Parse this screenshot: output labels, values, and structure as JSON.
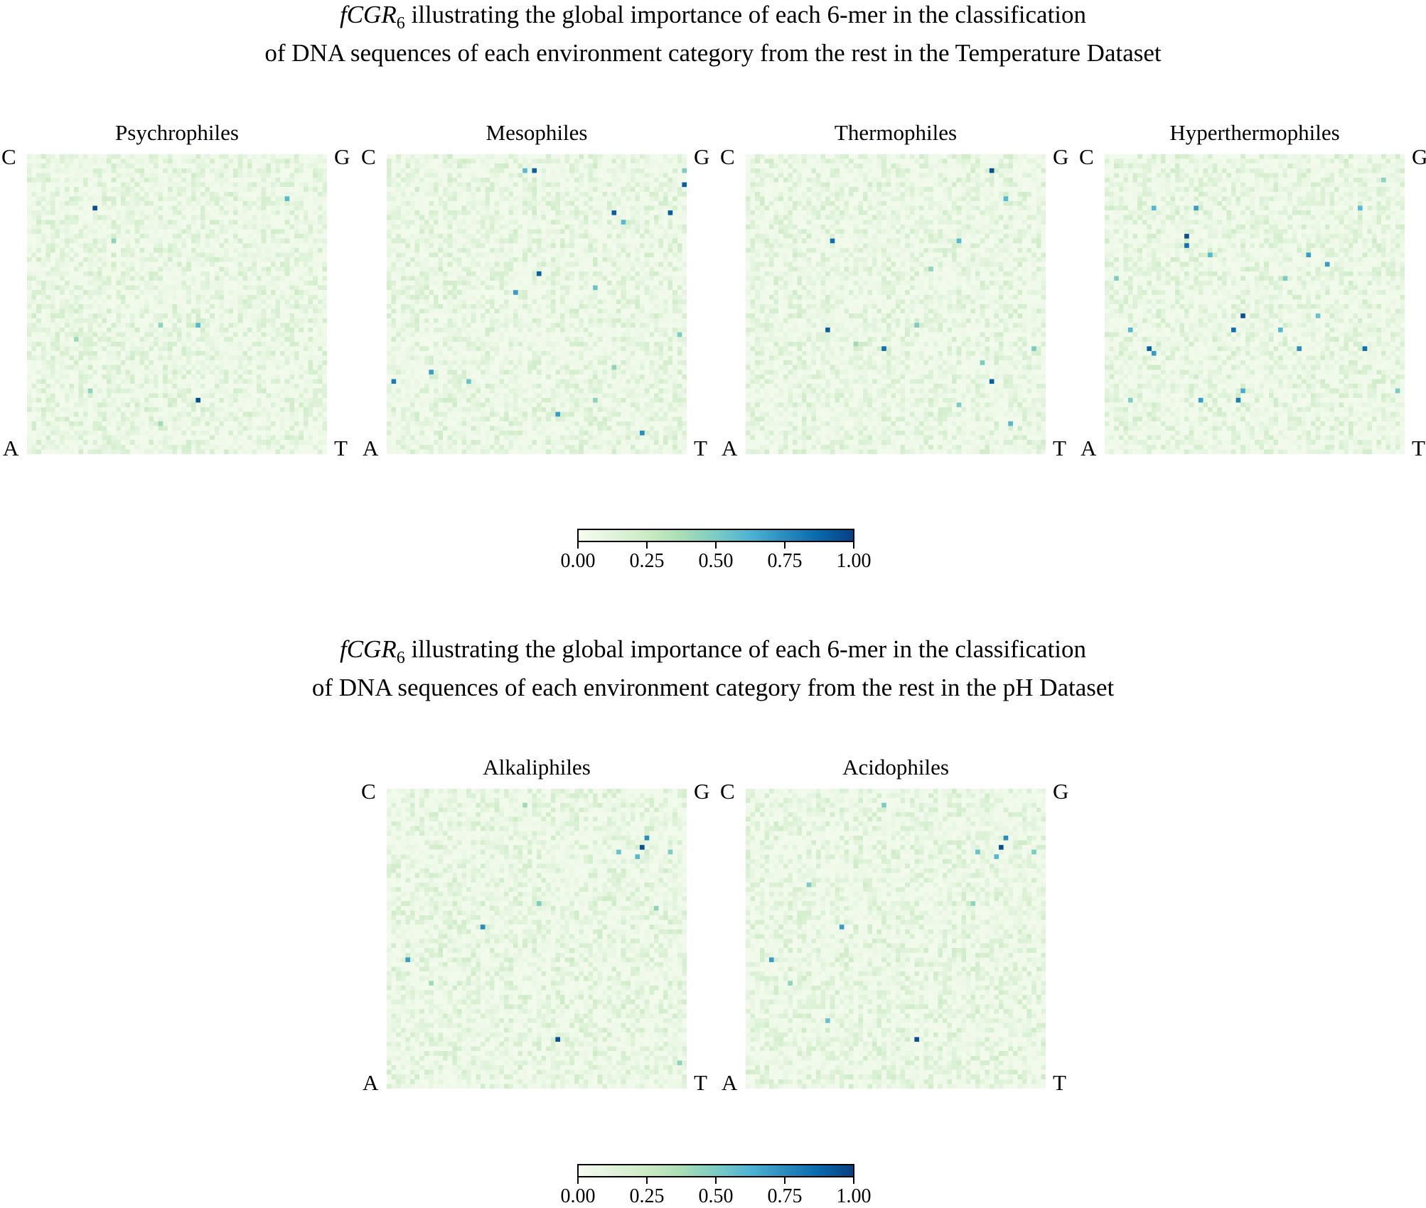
{
  "chart_data": {
    "type": "heatmap",
    "colormap": "GnBu",
    "grid_size": 64,
    "background_range": [
      0.0,
      0.2
    ],
    "figures": [
      {
        "title_prefix": "fCGR",
        "title_subscript": "6",
        "title_line1": " illustrating the global importance of each 6-mer in the classification",
        "title_line2": "of DNA sequences of each environment category from the rest in the Temperature Dataset",
        "colorbar": {
          "ticks": [
            "0.00",
            "0.25",
            "0.50",
            "0.75",
            "1.00"
          ],
          "range": [
            0,
            1
          ]
        },
        "panels": [
          {
            "title": "Psychrophiles",
            "corners": {
              "tl": "C",
              "tr": "G",
              "bl": "A",
              "br": "T"
            },
            "hotspots": [
              [
                14,
                11,
                0.95
              ],
              [
                55,
                9,
                0.6
              ],
              [
                36,
                52,
                0.95
              ],
              [
                36,
                36,
                0.6
              ],
              [
                28,
                36,
                0.45
              ],
              [
                10,
                39,
                0.4
              ],
              [
                13,
                50,
                0.45
              ],
              [
                18,
                18,
                0.45
              ],
              [
                28,
                57,
                0.4
              ]
            ]
          },
          {
            "title": "Mesophiles",
            "corners": {
              "tl": "C",
              "tr": "G",
              "bl": "A",
              "br": "T"
            },
            "hotspots": [
              [
                31,
                3,
                0.9
              ],
              [
                29,
                3,
                0.6
              ],
              [
                63,
                6,
                0.9
              ],
              [
                63,
                3,
                0.5
              ],
              [
                48,
                12,
                0.9
              ],
              [
                50,
                14,
                0.6
              ],
              [
                60,
                12,
                0.9
              ],
              [
                32,
                25,
                0.9
              ],
              [
                27,
                29,
                0.7
              ],
              [
                44,
                28,
                0.55
              ],
              [
                1,
                48,
                0.8
              ],
              [
                9,
                46,
                0.7
              ],
              [
                17,
                48,
                0.55
              ],
              [
                36,
                55,
                0.7
              ],
              [
                54,
                59,
                0.75
              ],
              [
                44,
                52,
                0.45
              ],
              [
                62,
                38,
                0.5
              ],
              [
                48,
                45,
                0.45
              ]
            ]
          },
          {
            "title": "Thermophiles",
            "corners": {
              "tl": "C",
              "tr": "G",
              "bl": "A",
              "br": "T"
            },
            "hotspots": [
              [
                52,
                3,
                0.95
              ],
              [
                55,
                9,
                0.6
              ],
              [
                18,
                18,
                0.85
              ],
              [
                45,
                18,
                0.6
              ],
              [
                17,
                37,
                0.9
              ],
              [
                29,
                41,
                0.85
              ],
              [
                36,
                36,
                0.5
              ],
              [
                52,
                48,
                0.9
              ],
              [
                56,
                57,
                0.6
              ],
              [
                45,
                53,
                0.5
              ],
              [
                50,
                44,
                0.5
              ],
              [
                61,
                41,
                0.5
              ],
              [
                39,
                24,
                0.45
              ],
              [
                23,
                40,
                0.4
              ]
            ]
          },
          {
            "title": "Hyperthermophiles",
            "corners": {
              "tl": "C",
              "tr": "G",
              "bl": "A",
              "br": "T"
            },
            "hotspots": [
              [
                10,
                11,
                0.6
              ],
              [
                17,
                17,
                0.95
              ],
              [
                17,
                19,
                0.85
              ],
              [
                19,
                11,
                0.7
              ],
              [
                22,
                21,
                0.6
              ],
              [
                43,
                21,
                0.7
              ],
              [
                47,
                23,
                0.7
              ],
              [
                54,
                11,
                0.6
              ],
              [
                29,
                34,
                0.95
              ],
              [
                27,
                37,
                0.85
              ],
              [
                37,
                37,
                0.6
              ],
              [
                41,
                41,
                0.75
              ],
              [
                45,
                34,
                0.55
              ],
              [
                55,
                41,
                0.85
              ],
              [
                9,
                41,
                0.9
              ],
              [
                10,
                42,
                0.7
              ],
              [
                5,
                37,
                0.6
              ],
              [
                20,
                52,
                0.7
              ],
              [
                28,
                52,
                0.8
              ],
              [
                29,
                50,
                0.65
              ],
              [
                5,
                52,
                0.5
              ],
              [
                62,
                50,
                0.5
              ],
              [
                2,
                26,
                0.5
              ],
              [
                38,
                26,
                0.5
              ],
              [
                59,
                5,
                0.45
              ]
            ]
          }
        ]
      },
      {
        "title_prefix": "fCGR",
        "title_subscript": "6",
        "title_line1": " illustrating the global importance of each 6-mer in the classification",
        "title_line2": "of DNA sequences of each environment category from the rest in the pH Dataset",
        "colorbar": {
          "ticks": [
            "0.00",
            "0.25",
            "0.50",
            "0.75",
            "1.00"
          ],
          "range": [
            0,
            1
          ]
        },
        "panels": [
          {
            "title": "Alkaliphiles",
            "corners": {
              "tl": "C",
              "tr": "G",
              "bl": "A",
              "br": "T"
            },
            "hotspots": [
              [
                55,
                10,
                0.75
              ],
              [
                54,
                12,
                0.95
              ],
              [
                53,
                14,
                0.6
              ],
              [
                49,
                13,
                0.55
              ],
              [
                60,
                13,
                0.5
              ],
              [
                20,
                29,
                0.75
              ],
              [
                4,
                36,
                0.7
              ],
              [
                36,
                53,
                0.95
              ],
              [
                32,
                24,
                0.5
              ],
              [
                57,
                25,
                0.45
              ],
              [
                29,
                3,
                0.4
              ],
              [
                62,
                58,
                0.45
              ],
              [
                9,
                41,
                0.4
              ]
            ]
          },
          {
            "title": "Acidophiles",
            "corners": {
              "tl": "C",
              "tr": "G",
              "bl": "A",
              "br": "T"
            },
            "hotspots": [
              [
                55,
                10,
                0.75
              ],
              [
                54,
                12,
                0.95
              ],
              [
                53,
                14,
                0.6
              ],
              [
                49,
                13,
                0.55
              ],
              [
                61,
                13,
                0.5
              ],
              [
                20,
                29,
                0.7
              ],
              [
                5,
                36,
                0.7
              ],
              [
                36,
                53,
                0.95
              ],
              [
                29,
                3,
                0.5
              ],
              [
                17,
                49,
                0.55
              ],
              [
                13,
                20,
                0.5
              ],
              [
                9,
                41,
                0.45
              ],
              [
                48,
                24,
                0.45
              ]
            ]
          }
        ]
      }
    ]
  }
}
